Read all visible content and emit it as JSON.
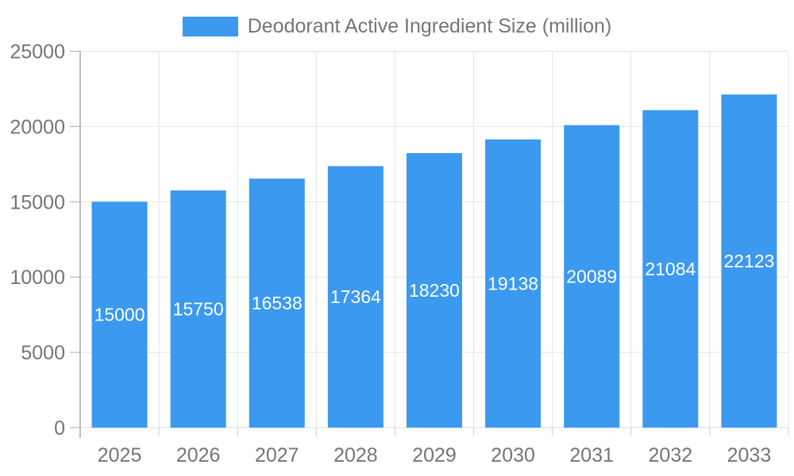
{
  "legend": {
    "label": "Deodorant Active Ingredient Size (million)"
  },
  "colors": {
    "bar": "#3B99F0",
    "axis_text": "#757575",
    "data_label": "#FFFFFF",
    "grid_line": "#E4E4E4",
    "axis_line": "#A8A8A8",
    "zero_line": "#D8D8D8",
    "x_tick": "#CCCCCC"
  },
  "chart_data": {
    "type": "bar",
    "title": "Deodorant Active Ingredient Size (million)",
    "categories": [
      "2025",
      "2026",
      "2027",
      "2028",
      "2029",
      "2030",
      "2031",
      "2032",
      "2033"
    ],
    "values": [
      15000,
      15750,
      16538,
      17364,
      18230,
      19138,
      20089,
      21084,
      22123
    ],
    "series": [
      {
        "name": "Deodorant Active Ingredient Size (million)",
        "values": [
          15000,
          15750,
          16538,
          17364,
          18230,
          19138,
          20089,
          21084,
          22123
        ]
      }
    ],
    "xlabel": "",
    "ylabel": "",
    "ylim": [
      0,
      25000
    ],
    "ytick_step": 5000,
    "ytick_labels": [
      "0",
      "5000",
      "10000",
      "15000",
      "20000",
      "25000"
    ],
    "grid": "both",
    "legend_position": "top-center",
    "data_labels": "inside-center-white"
  }
}
